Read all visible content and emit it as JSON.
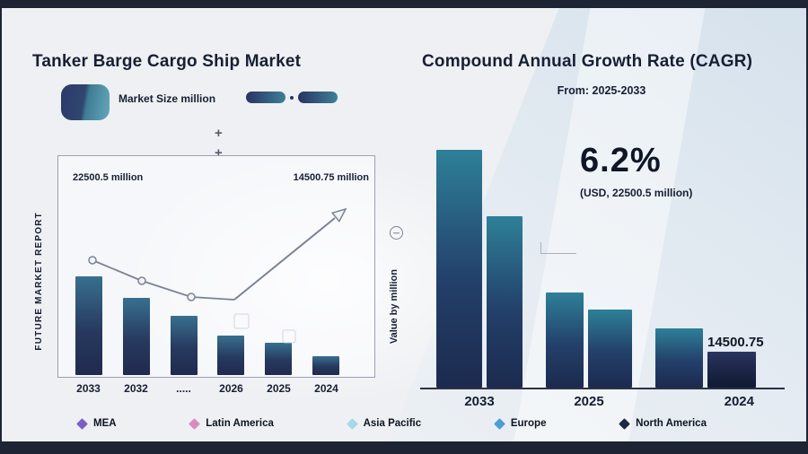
{
  "left": {
    "title": "Tanker Barge Cargo Ship Market",
    "legend_label": "Market Size million",
    "top_left": "22500.5 million",
    "top_right": "14500.75 million",
    "side_label": "FUTURE MARKET REPORT"
  },
  "right": {
    "title": "Compound Annual Growth Rate (CAGR)",
    "subtitle": "From: 2025-2033",
    "cagr": "6.2%",
    "note": "(USD, 22500.5 million)",
    "ylabel": "Value by million",
    "annotation": "14500.75"
  },
  "decor": {
    "plus1": "+",
    "plus2": "+"
  },
  "colors": {
    "accent_dark": "#1d2433",
    "bar_teal_top": "#2e8099",
    "bar_navy_bottom": "#1c2a4e",
    "dark_bar": "#111a33"
  },
  "footer_legend": [
    {
      "label": "MEA",
      "color": "#7b5ec7"
    },
    {
      "label": "Latin America",
      "color": "#d78cc0"
    },
    {
      "label": "Asia Pacific",
      "color": "#a5d8e8"
    },
    {
      "label": "Europe",
      "color": "#4a9ed2"
    },
    {
      "label": "North America",
      "color": "#1e2747"
    }
  ],
  "chart_data": [
    {
      "type": "bar",
      "title": "Tanker Barge Cargo Ship Market",
      "legend": "Market Size million",
      "categories": [
        "2033",
        "2032",
        ".....",
        "2026",
        "2025",
        "2024"
      ],
      "values": [
        100,
        78,
        60,
        40,
        33,
        19
      ],
      "value_unit": "relative bar height %, no y-axis scale shown",
      "labeled_points": {
        "2033": "22500.5 million",
        "2024": "14500.75 million"
      },
      "side_label": "FUTURE MARKET REPORT",
      "trend": "marker line declines from 2033 toward 2026 then an outlined arrow rises to the upper right",
      "grid": false,
      "legend_position": "top-left"
    },
    {
      "type": "bar",
      "title": "Compound Annual Growth Rate (CAGR)",
      "subtitle": "From: 2025-2033",
      "cagr": "6.2%",
      "cagr_note": "(USD, 22500.5 million)",
      "categories": [
        "2033",
        "2025",
        "2024"
      ],
      "series": [
        {
          "name": "bar-1",
          "values": [
            100,
            40,
            25
          ]
        },
        {
          "name": "bar-2",
          "values": [
            72,
            33,
            15
          ]
        }
      ],
      "bar_variants": [
        [
          "teal",
          "teal"
        ],
        [
          "teal",
          "teal"
        ],
        [
          "teal",
          "navy"
        ]
      ],
      "value_unit": "relative bar height %, no y-axis scale shown",
      "ylabel": "Value by million",
      "annotation": {
        "text": "14500.75",
        "category": "2024"
      },
      "grid": false
    }
  ]
}
